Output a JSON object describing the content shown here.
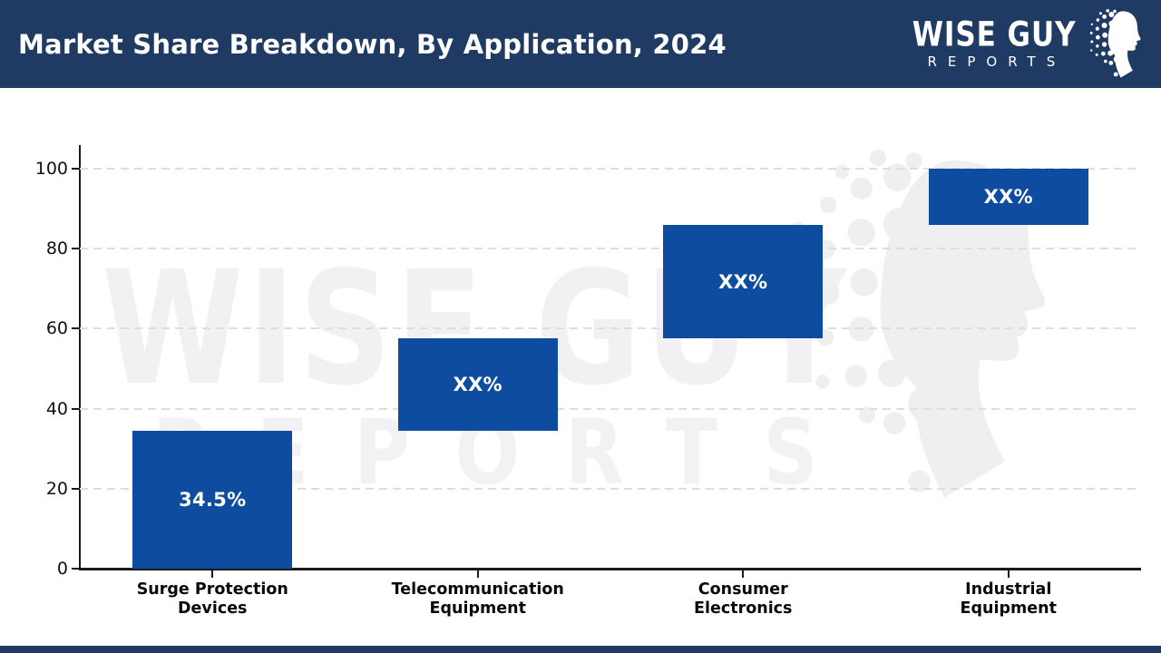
{
  "header": {
    "title": "Market Share Breakdown, By Application, 2024",
    "brand": {
      "line1": "WISE GUY",
      "line2": "REPORTS"
    }
  },
  "watermark": {
    "line1": "WISE GUY",
    "line2": "REPORTS"
  },
  "chart_data": {
    "type": "bar",
    "subtype": "waterfall",
    "title": "Market Share Breakdown, By Application, 2024",
    "categories": [
      [
        "Surge Protection",
        "Devices"
      ],
      [
        "Telecommunication",
        "Equipment"
      ],
      [
        "Consumer",
        "Electronics"
      ],
      [
        "Industrial",
        "Equipment"
      ]
    ],
    "series": [
      {
        "name": "Market Share (%)",
        "segments": [
          {
            "start": 0,
            "end": 34.5,
            "label": "34.5%"
          },
          {
            "start": 34.5,
            "end": 57.5,
            "label": "XX%"
          },
          {
            "start": 57.5,
            "end": 86,
            "label": "XX%"
          },
          {
            "start": 86,
            "end": 100,
            "label": "XX%"
          }
        ]
      }
    ],
    "ylim": [
      0,
      100
    ],
    "yticks": [
      0,
      20,
      40,
      60,
      80,
      100
    ],
    "grid": "horizontal-dashed",
    "legend": "none",
    "bar_color": "#0d4c9f",
    "bar_label_color": "#ffffff",
    "axis_color": "#1a1a1a",
    "grid_color": "#dedede"
  },
  "colors": {
    "header_bg": "#1f3a63",
    "footer_bg": "#1f3a63",
    "watermark": "#f1f1f3",
    "background": "#ffffff"
  }
}
